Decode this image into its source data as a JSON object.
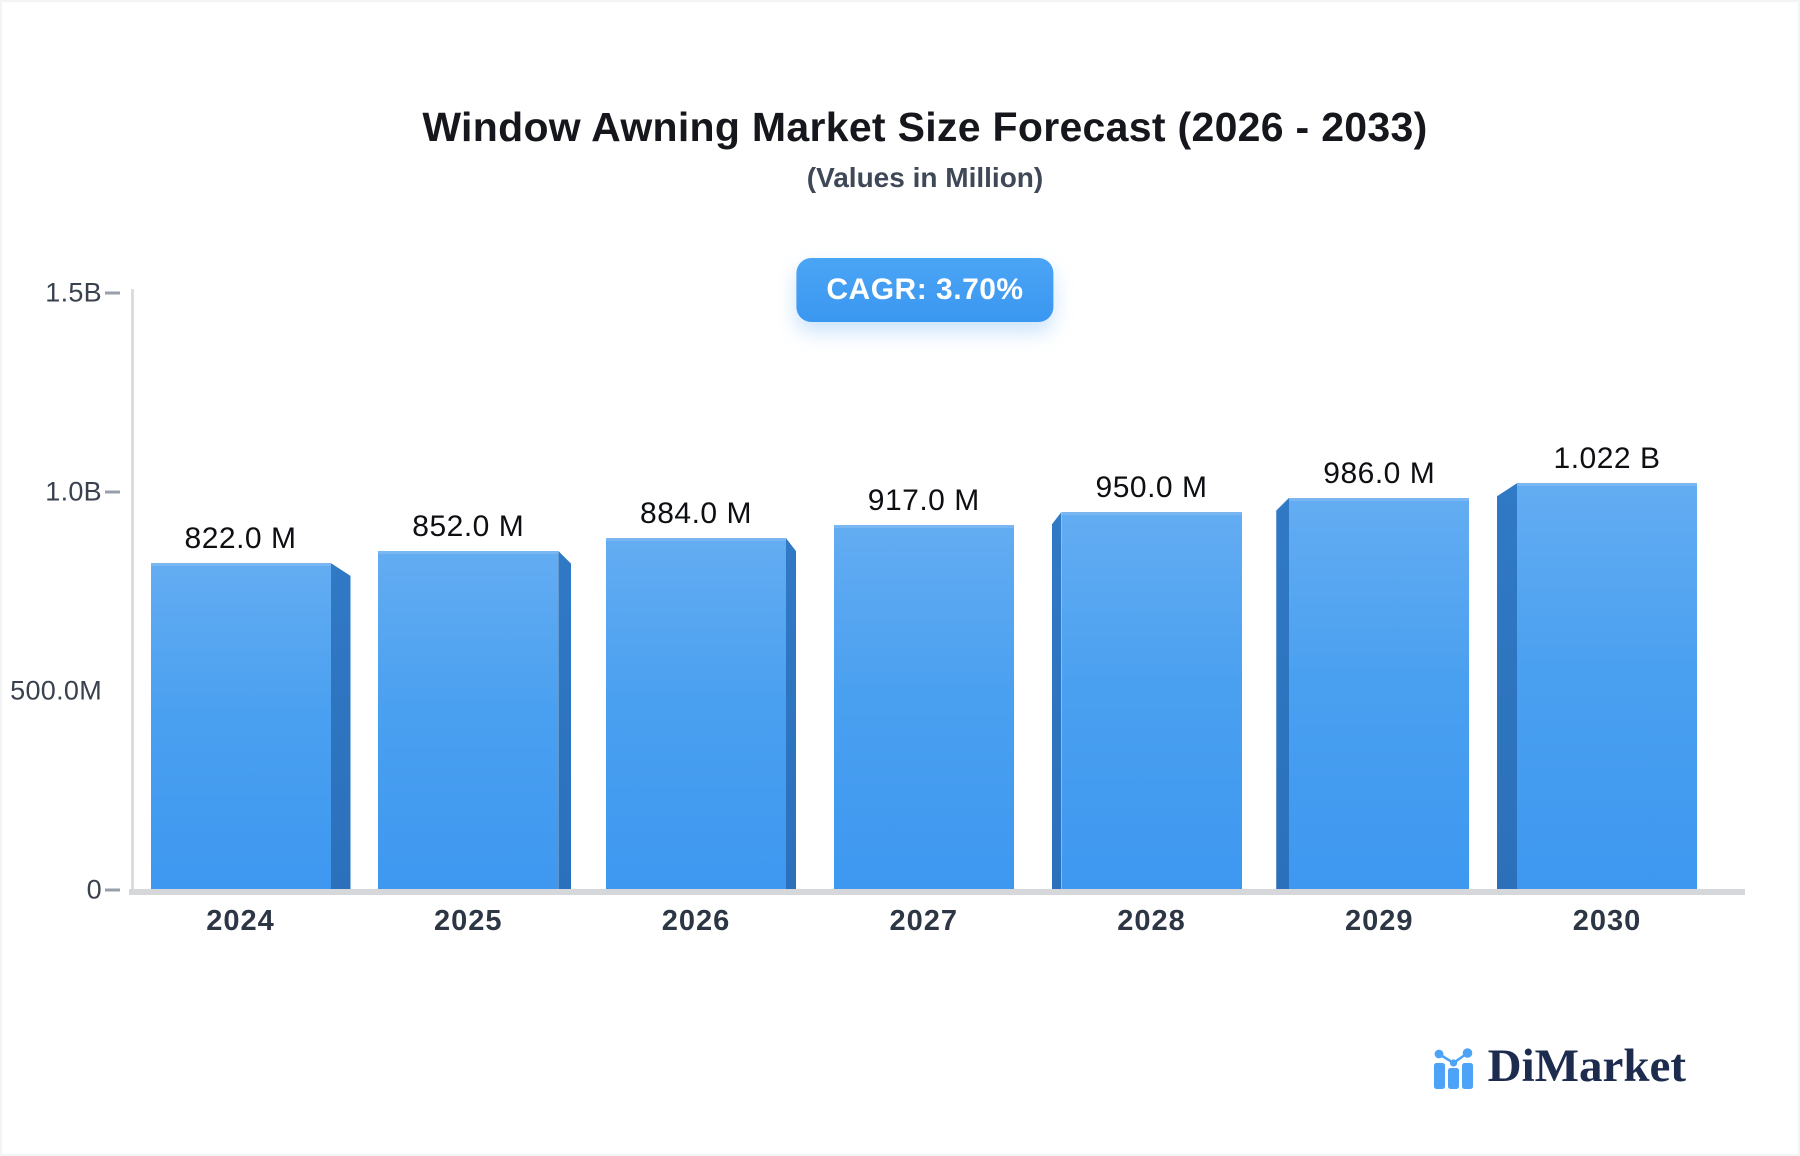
{
  "header": {
    "title": "Window Awning Market Size Forecast (2026 - 2033)",
    "subtitle": "(Values in Million)",
    "cagr_label": "CAGR: 3.70%"
  },
  "chart_data": {
    "type": "bar",
    "title": "Window Awning Market Size Forecast (2026 - 2033)",
    "subtitle": "(Values in Million)",
    "cagr_percent": 3.7,
    "categories": [
      "2024",
      "2025",
      "2026",
      "2027",
      "2028",
      "2029",
      "2030"
    ],
    "values_millions": [
      822,
      852,
      884,
      917,
      950,
      986,
      1022
    ],
    "bar_labels": [
      "822.0 M",
      "852.0 M",
      "884.0 M",
      "917.0 M",
      "950.0 M",
      "986.0 M",
      "1.022 B"
    ],
    "xlabel": "",
    "ylabel": "",
    "ylim_millions": [
      0,
      1500
    ],
    "grid": "off",
    "legend": "none",
    "y_axis": {
      "ticks": [
        {
          "label": "1.5B",
          "millions": 1500,
          "dash": true
        },
        {
          "label": "1.0B",
          "millions": 1000,
          "dash": true
        },
        {
          "label": "500.0M",
          "millions": 500,
          "dash": false
        },
        {
          "label": "0",
          "millions": 0,
          "dash": true
        }
      ]
    },
    "colors": {
      "bar_top": "#63acf2",
      "bar_mid": "#4aa0f0",
      "bar_bottom": "#3e98f0",
      "bar_edge": "#79b7f3",
      "bar_side": "#3079c5",
      "bar_side_deep": "#2b70ba",
      "axis_gray": "#d5d7da",
      "badge_blue": "#3d9af2"
    }
  },
  "branding": {
    "name": "DiMarket"
  }
}
